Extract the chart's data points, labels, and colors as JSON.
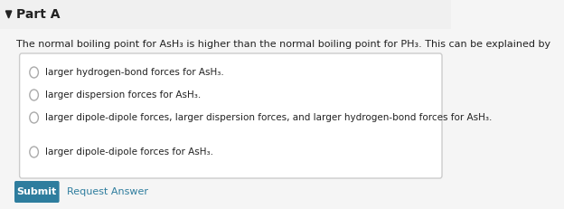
{
  "title": "Part A",
  "question": "The normal boiling point for AsH₃ is higher than the normal boiling point for PH₃. This can be explained by",
  "options": [
    "larger hydrogen-bond forces for AsH₃.",
    "larger dispersion forces for AsH₃.",
    "larger dipole-dipole forces, larger dispersion forces, and larger hydrogen-bond forces for AsH₃.",
    "larger dipole-dipole forces for AsH₃."
  ],
  "submit_label": "Submit",
  "request_label": "Request Answer",
  "bg_color": "#f5f5f5",
  "box_bg": "#ffffff",
  "box_border": "#cccccc",
  "title_color": "#222222",
  "question_color": "#222222",
  "option_color": "#222222",
  "submit_bg": "#2e7d9e",
  "submit_fg": "#ffffff",
  "request_fg": "#2e7d9e",
  "arrow_color": "#222222",
  "radio_edge": "#aaaaaa",
  "radio_fill": "#ffffff"
}
